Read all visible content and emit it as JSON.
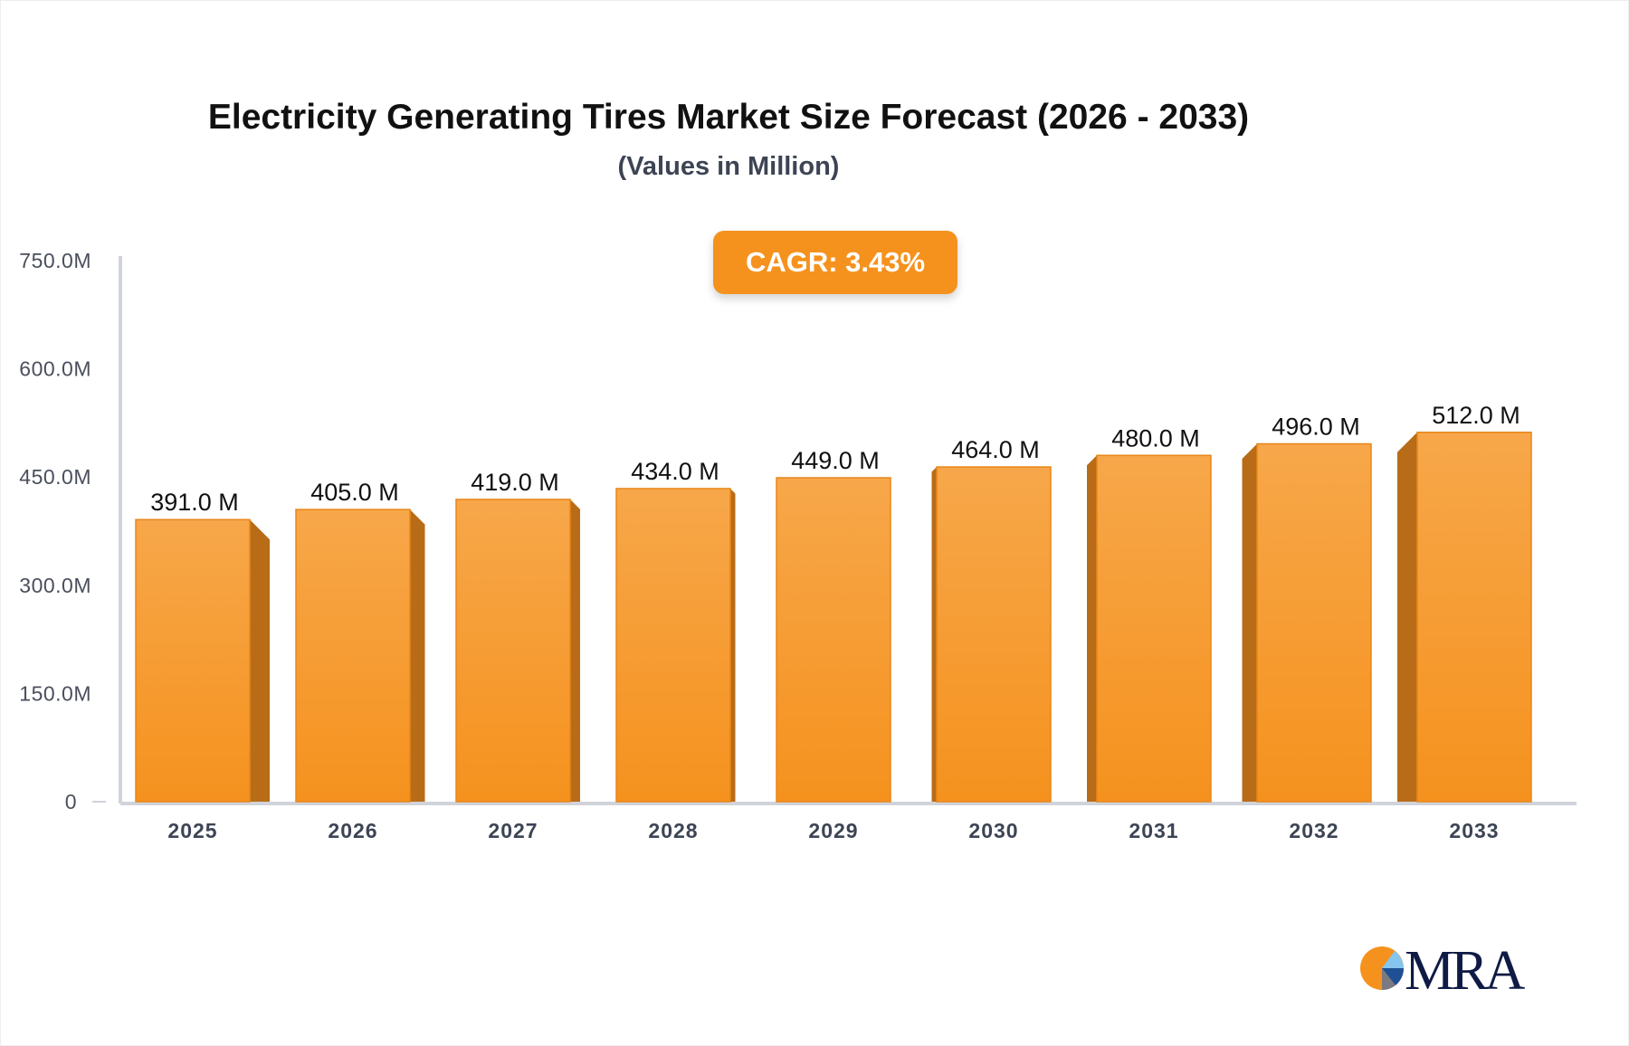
{
  "chart_data": {
    "type": "bar",
    "title": "Electricity Generating Tires Market Size Forecast (2026 - 2033)",
    "subtitle": "(Values in Million)",
    "annotation": "CAGR: 3.43%",
    "categories": [
      "2025",
      "2026",
      "2027",
      "2028",
      "2029",
      "2030",
      "2031",
      "2032",
      "2033"
    ],
    "values": [
      391.0,
      405.0,
      419.0,
      434.0,
      449.0,
      464.0,
      480.0,
      496.0,
      512.0
    ],
    "data_labels": [
      "391.0 M",
      "405.0 M",
      "419.0 M",
      "434.0 M",
      "449.0 M",
      "464.0 M",
      "480.0 M",
      "496.0 M",
      "512.0 M"
    ],
    "ylim": [
      0,
      750
    ],
    "yticks": [
      0,
      150,
      300,
      450,
      600,
      750
    ],
    "ytick_labels": [
      "0",
      "150.0M",
      "300.0M",
      "450.0M",
      "600.0M",
      "750.0M"
    ],
    "xlabel": "",
    "ylabel": "",
    "grid": false,
    "colors": {
      "bar_front": "#f5921e",
      "bar_side": "#b86c17",
      "axis": "#d0d3da",
      "cagr_bg": "#f5921e"
    }
  },
  "logo": {
    "text": "MRA"
  }
}
